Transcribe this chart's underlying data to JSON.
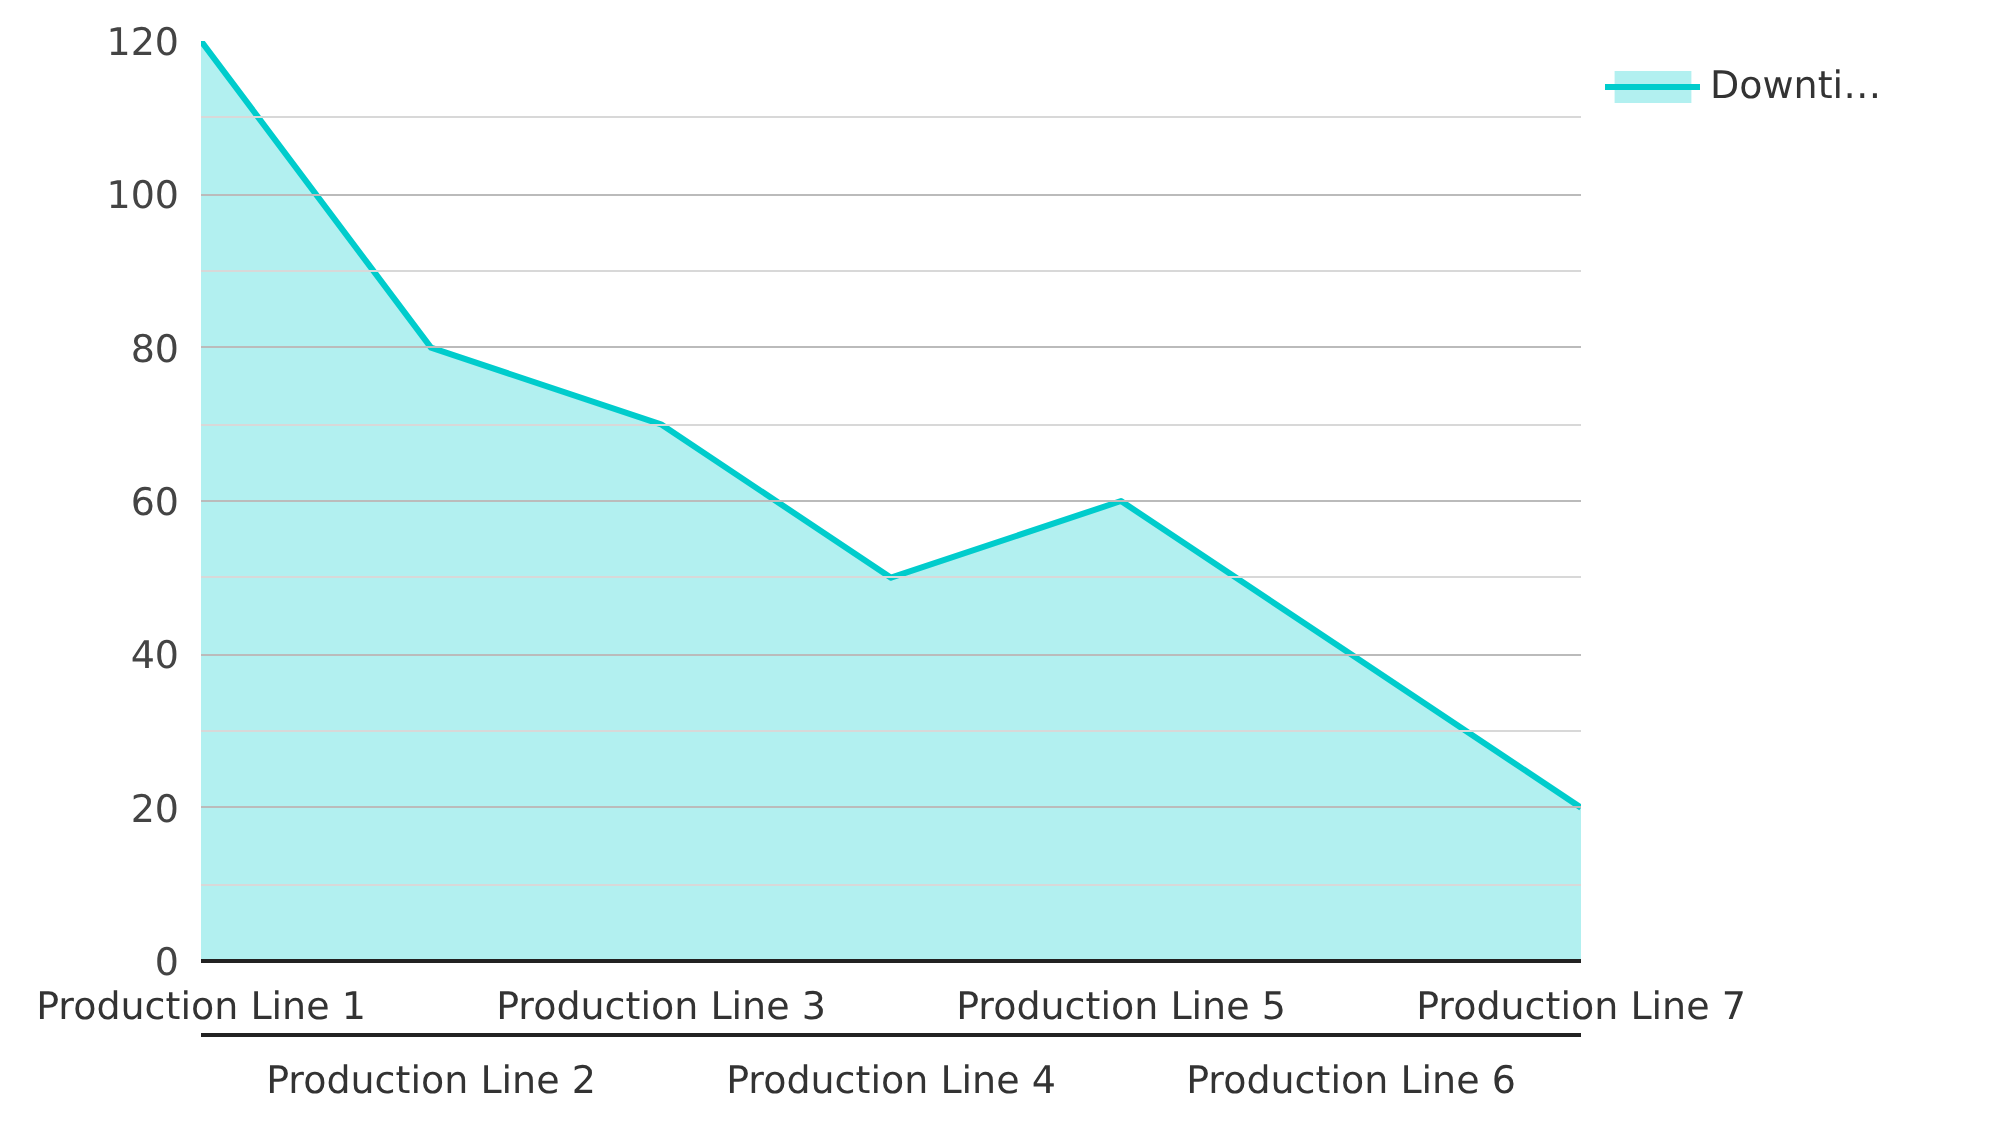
{
  "chart_data": {
    "type": "area",
    "categories": [
      "Production Line 1",
      "Production Line 2",
      "Production Line 3",
      "Production Line 4",
      "Production Line 5",
      "Production Line 6",
      "Production Line 7"
    ],
    "series": [
      {
        "name": "Downti…",
        "color": "#00cccc",
        "values": [
          120,
          80,
          70,
          50,
          60,
          40,
          20
        ]
      }
    ],
    "ylim": [
      0,
      120
    ],
    "yticks": [
      0,
      {
        "value": 10,
        "label": null
      },
      20,
      {
        "value": 30,
        "label": null
      },
      40,
      {
        "value": 50,
        "label": null
      },
      60,
      {
        "value": 70,
        "label": null
      },
      80,
      {
        "value": 90,
        "label": null
      },
      100,
      {
        "value": 110,
        "label": null
      },
      120
    ],
    "grid": "y",
    "legend": "top right"
  }
}
